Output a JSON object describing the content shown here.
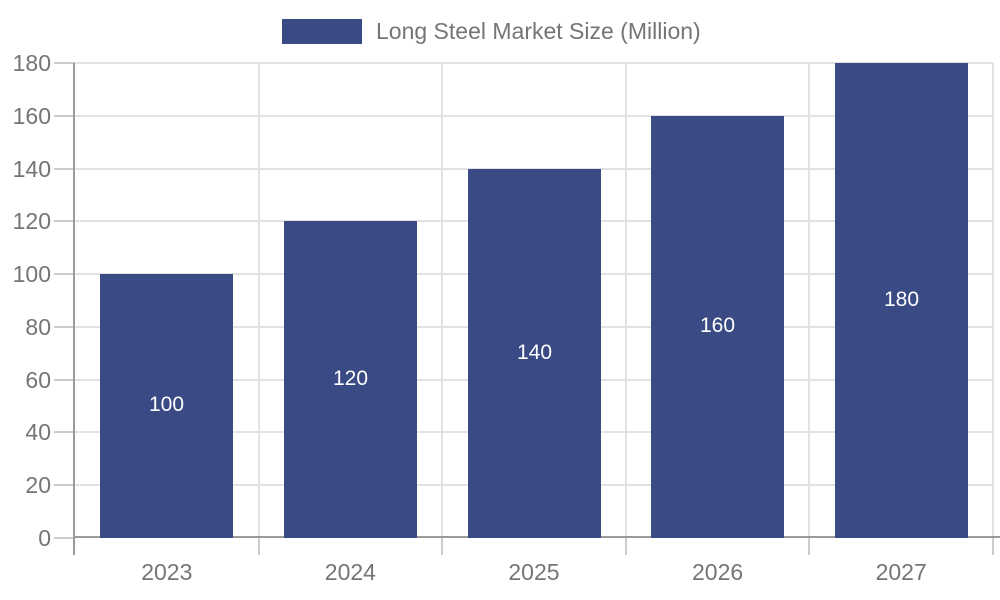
{
  "legend": {
    "label": "Long Steel Market Size (Million)"
  },
  "colors": {
    "bar": "#3a4a85",
    "grid": "#e2e2e2",
    "axis": "#9b9b9b",
    "tick": "#cccccc",
    "text": "#757575",
    "value_label": "#ffffff",
    "background": "#ffffff"
  },
  "chart_data": {
    "type": "bar",
    "categories": [
      "2023",
      "2024",
      "2025",
      "2026",
      "2027"
    ],
    "values": [
      100,
      120,
      140,
      160,
      180
    ],
    "title": "",
    "xlabel": "",
    "ylabel": "",
    "ylim": [
      0,
      180
    ],
    "ytick_step": 20,
    "yticks": [
      0,
      20,
      40,
      60,
      80,
      100,
      120,
      140,
      160,
      180
    ],
    "legend": "Long Steel Market Size (Million)",
    "legend_position": "top-center",
    "grid": true,
    "bar_labels": true,
    "bar_label_position": "center",
    "series": [
      {
        "name": "Long Steel Market Size (Million)",
        "values": [
          100,
          120,
          140,
          160,
          180
        ]
      }
    ]
  }
}
